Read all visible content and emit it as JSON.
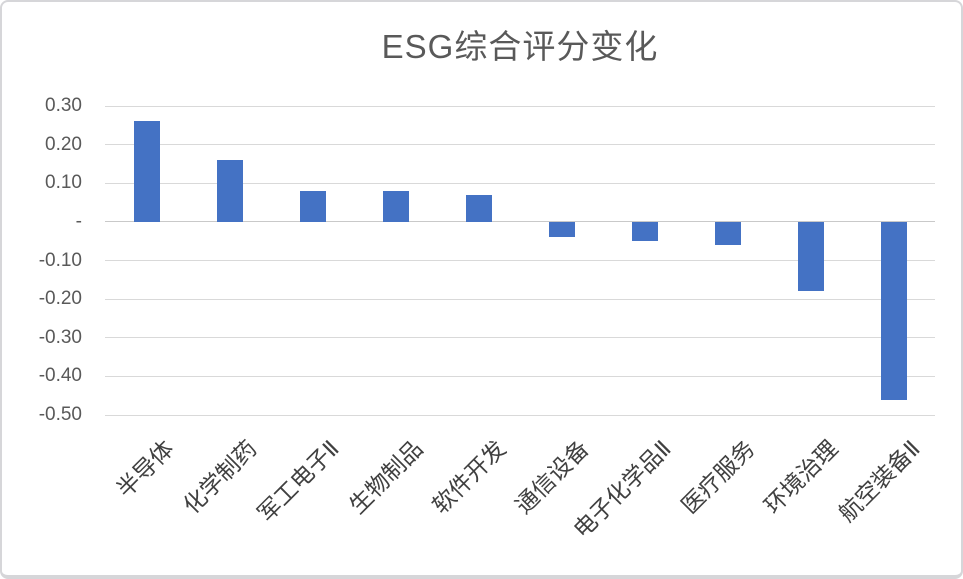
{
  "chart_data": {
    "type": "bar",
    "title": "ESG综合评分变化",
    "categories": [
      "半导体",
      "化学制药",
      "军工电子Ⅱ",
      "生物制品",
      "软件开发",
      "通信设备",
      "电子化学品Ⅱ",
      "医疗服务",
      "环境治理",
      "航空装备Ⅱ"
    ],
    "values": [
      0.26,
      0.16,
      0.08,
      0.08,
      0.07,
      -0.04,
      -0.05,
      -0.06,
      -0.18,
      -0.46
    ],
    "xlabel": "",
    "ylabel": "",
    "ylim": [
      -0.5,
      0.3
    ],
    "ytick_step": 0.1,
    "yticks": [
      {
        "value": 0.3,
        "label": "0.30"
      },
      {
        "value": 0.2,
        "label": "0.20"
      },
      {
        "value": 0.1,
        "label": "0.10"
      },
      {
        "value": 0.0,
        "label": "-"
      },
      {
        "value": -0.1,
        "label": "-0.10"
      },
      {
        "value": -0.2,
        "label": "-0.20"
      },
      {
        "value": -0.3,
        "label": "-0.30"
      },
      {
        "value": -0.4,
        "label": "-0.40"
      },
      {
        "value": -0.5,
        "label": "-0.50"
      }
    ],
    "grid": true,
    "legend_position": "none",
    "category_rotation_deg": 45,
    "colors": {
      "bar": "#4472C4",
      "gridline": "#D9D9D9",
      "zero_line": "#C9C9C9",
      "title_text": "#595959",
      "ytick_text": "#595959",
      "xtick_text": "#404040",
      "background": "#FFFFFF",
      "border": "#D6D6D9"
    }
  }
}
